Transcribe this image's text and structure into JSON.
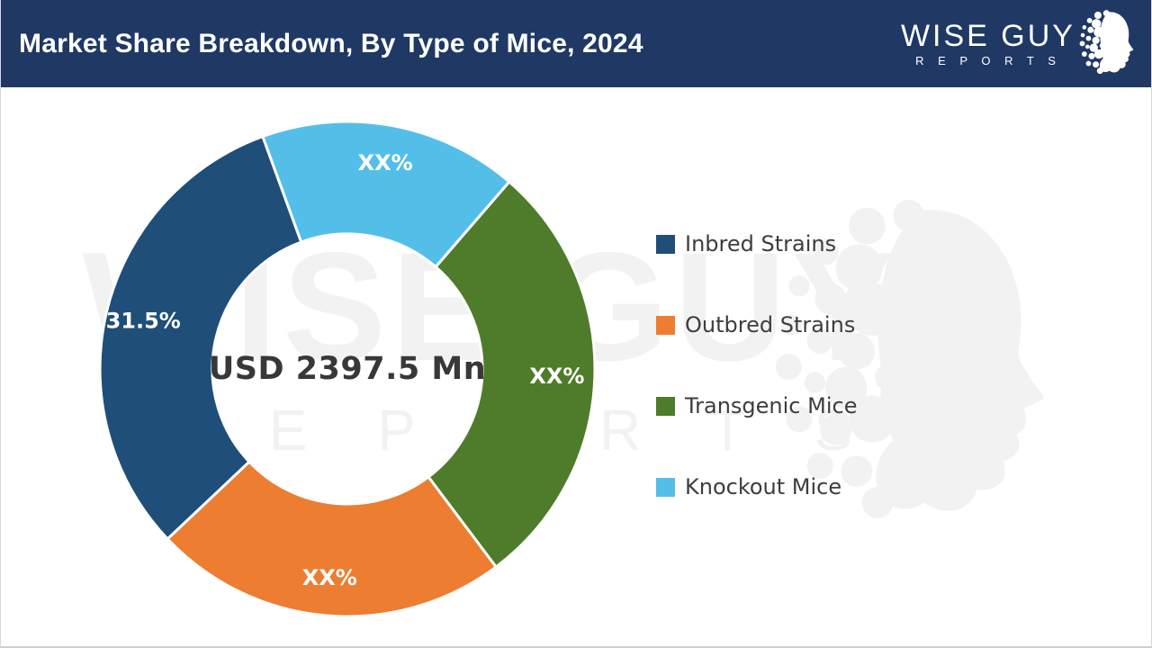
{
  "header": {
    "title": "Market Share Breakdown, By Type of Mice, 2024",
    "logo": {
      "line1": "WISE GUY",
      "line2": "R E P O R T S",
      "face_icon": "head-profile-dots-icon"
    }
  },
  "watermark": {
    "line1": "WISE GUY",
    "line2": "R E P O R T S"
  },
  "chart_data": {
    "type": "pie",
    "subtype": "donut",
    "title": "Market Share Breakdown, By Type of Mice, 2024",
    "center_label": "USD 2397.5 Mn",
    "legend_position": "right",
    "start_angle_deg": 110,
    "direction": "counterclockwise",
    "outer_radius": 275,
    "inner_radius": 150,
    "label_radius": 233,
    "slices": [
      {
        "name": "Inbred Strains",
        "label": "31.5%",
        "value": 31.5,
        "color": "#1f4e79"
      },
      {
        "name": "Outbred Strains",
        "label": "XX%",
        "value": 23.2,
        "color": "#ed7d31"
      },
      {
        "name": "Transgenic Mice",
        "label": "XX%",
        "value": 28.4,
        "color": "#4e7c2a"
      },
      {
        "name": "Knockout Mice",
        "label": "XX%",
        "value": 16.9,
        "color": "#53bfe8"
      }
    ]
  },
  "colors": {
    "header_bg": "#1f3864",
    "center_text": "#383838",
    "legend_text": "#3d3d3d",
    "slice_label_text": "#ffffff",
    "watermark": "#f2f2f2",
    "border": "#d9d9d9"
  }
}
